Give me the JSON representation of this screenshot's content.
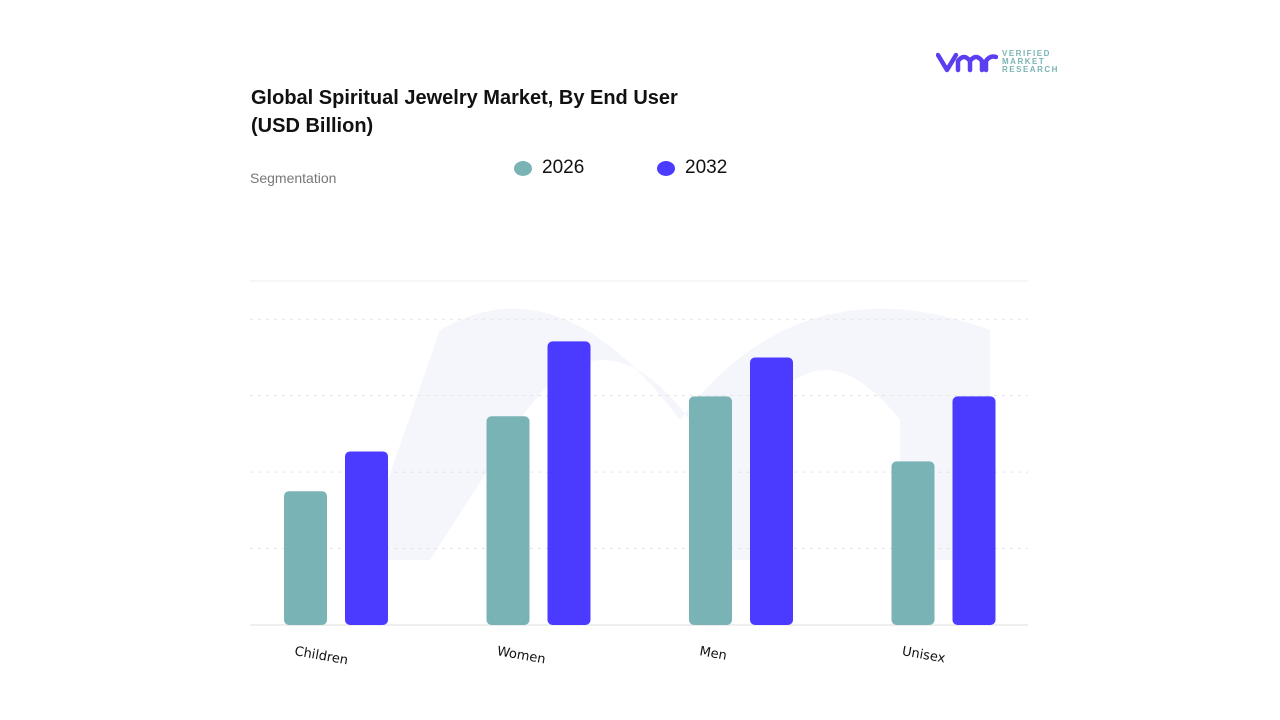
{
  "title_line1": "Global Spiritual Jewelry Market, By End User",
  "title_line2": "(USD Billion)",
  "segmentation_label": "Segmentation",
  "logo": {
    "text_lines": [
      "VERIFIED",
      "MARKET",
      "RESEARCH"
    ],
    "mark": "vmr",
    "color": "#5b3ef0"
  },
  "chart_data": {
    "type": "bar",
    "title": "Global Spiritual Jewelry Market, By End User (USD Billion)",
    "categories": [
      "Children",
      "Women",
      "Men",
      "Unisex"
    ],
    "series": [
      {
        "name": "2026",
        "color": "#7ab3b5",
        "values": [
          1.75,
          2.73,
          2.99,
          2.14
        ]
      },
      {
        "name": "2032",
        "color": "#4b3aff",
        "values": [
          2.27,
          3.71,
          3.5,
          2.99
        ]
      }
    ],
    "ylim": [
      0,
      4.5
    ],
    "y_ticks_printed": false,
    "grid": true,
    "legend_placement": "top"
  }
}
